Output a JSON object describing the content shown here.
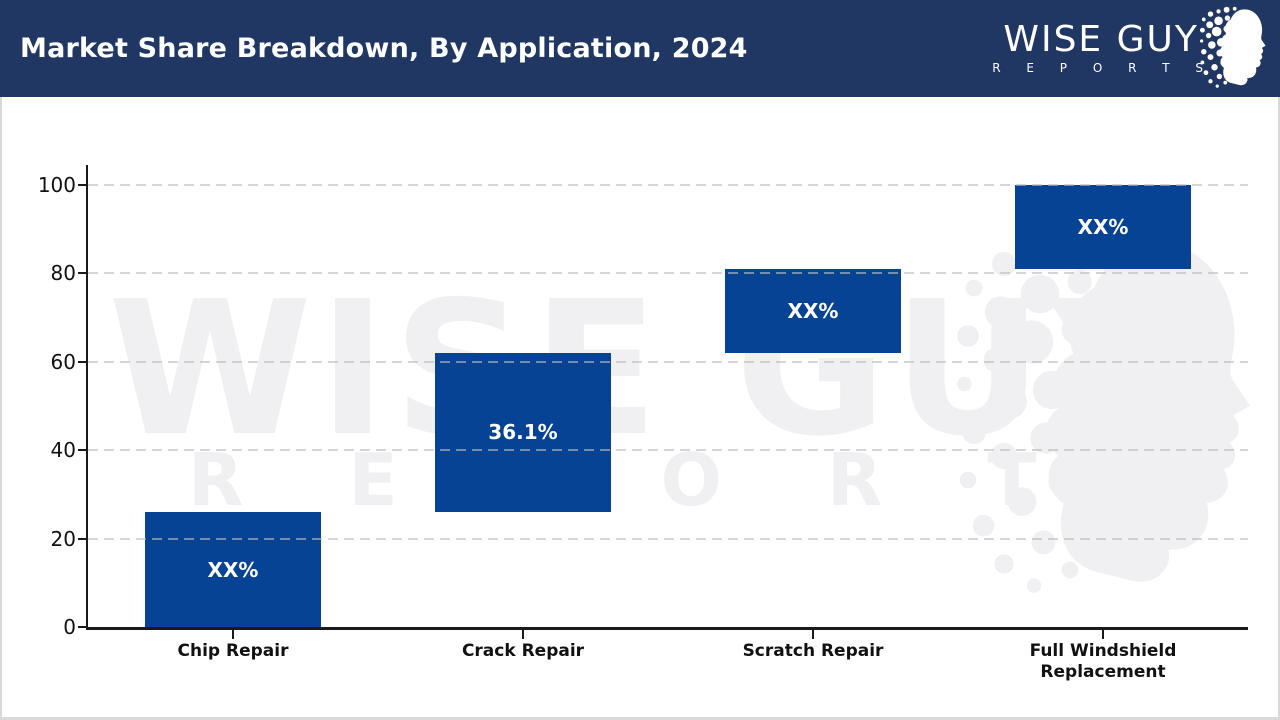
{
  "header": {
    "title": "Market Share Breakdown, By Application, 2024",
    "logo": {
      "line1": "WISE GUY",
      "line2": "R E P O R T S"
    }
  },
  "watermark": {
    "line1": "WISE GUY",
    "line2": "R E P O R T S"
  },
  "colors": {
    "header_bg": "#203764",
    "bar": "#064394",
    "bar_label": "#ffffff",
    "axis": "#1a1a1a",
    "tick_label": "#111111",
    "watermark": "#f0f0f2",
    "logo": "#ffffff"
  },
  "chart_data": {
    "type": "bar",
    "subtype": "waterfall",
    "title": "Market Share Breakdown, By Application, 2024",
    "categories": [
      "Chip Repair",
      "Crack Repair",
      "Scratch Repair",
      "Full Windshield Replacement"
    ],
    "segments": [
      {
        "category": "Chip Repair",
        "start": 0,
        "end": 26,
        "value": 26,
        "label": "XX%"
      },
      {
        "category": "Crack Repair",
        "start": 26,
        "end": 62.1,
        "value": 36.1,
        "label": "36.1%"
      },
      {
        "category": "Scratch Repair",
        "start": 62.1,
        "end": 81,
        "value": 18.9,
        "label": "XX%"
      },
      {
        "category": "Full Windshield Replacement",
        "start": 81,
        "end": 100,
        "value": 19,
        "label": "XX%"
      }
    ],
    "yticks": [
      0,
      20,
      40,
      60,
      80,
      100
    ],
    "ylim": [
      0,
      100
    ],
    "xlabel": "",
    "ylabel": "",
    "grid": "dashed-horizontal",
    "legend": "none"
  }
}
